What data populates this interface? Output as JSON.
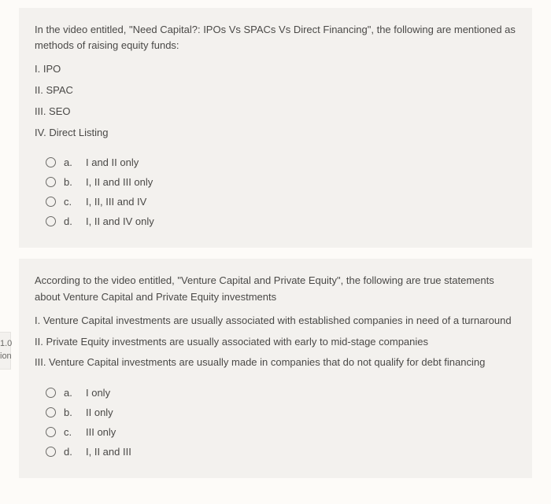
{
  "side_tab": {
    "line1": "1.0",
    "line2": "ion"
  },
  "q1": {
    "prompt": "In the video entitled, \"Need Capital?: IPOs Vs SPACs Vs Direct Financing\", the following are mentioned as methods of raising equity funds:",
    "statements": [
      "I.  IPO",
      "II.  SPAC",
      "III.  SEO",
      "IV.  Direct Listing"
    ],
    "options": [
      {
        "letter": "a.",
        "text": "I and II only"
      },
      {
        "letter": "b.",
        "text": "I, II and III only"
      },
      {
        "letter": "c.",
        "text": "I, II, III and IV"
      },
      {
        "letter": "d.",
        "text": "I, II and IV only"
      }
    ]
  },
  "q2": {
    "prompt": "According to the video entitled, \"Venture Capital and Private Equity\", the following are true statements about Venture Capital and Private Equity investments",
    "statements": [
      "I.  Venture Capital investments are usually associated with established companies in need of a turnaround",
      "II.  Private Equity investments are usually associated with early to mid-stage companies",
      "III.  Venture Capital investments are usually made in companies that do not qualify for debt financing"
    ],
    "options": [
      {
        "letter": "a.",
        "text": "I only"
      },
      {
        "letter": "b.",
        "text": "II only"
      },
      {
        "letter": "c.",
        "text": "III only"
      },
      {
        "letter": "d.",
        "text": "I, II and III"
      }
    ]
  }
}
